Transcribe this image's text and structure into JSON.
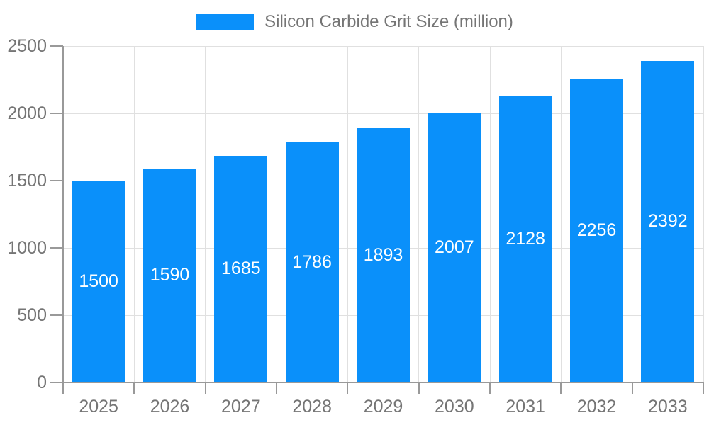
{
  "legend": {
    "label": "Silicon Carbide Grit Size (million)"
  },
  "chart_data": {
    "type": "bar",
    "title": "",
    "xlabel": "",
    "ylabel": "",
    "categories": [
      "2025",
      "2026",
      "2027",
      "2028",
      "2029",
      "2030",
      "2031",
      "2032",
      "2033"
    ],
    "series": [
      {
        "name": "Silicon Carbide Grit Size (million)",
        "values": [
          1500,
          1590,
          1685,
          1786,
          1893,
          2007,
          2128,
          2256,
          2392
        ]
      }
    ],
    "ylim": [
      0,
      2500
    ],
    "yticks": [
      0,
      500,
      1000,
      1500,
      2000,
      2500
    ],
    "grid": true,
    "legend_position": "top",
    "bar_color": "#0A90FA",
    "bar_label_color": "#FFFFFF",
    "axis_color": "#999999",
    "gridline_color": "#E0E0E0",
    "text_color": "#757575"
  }
}
